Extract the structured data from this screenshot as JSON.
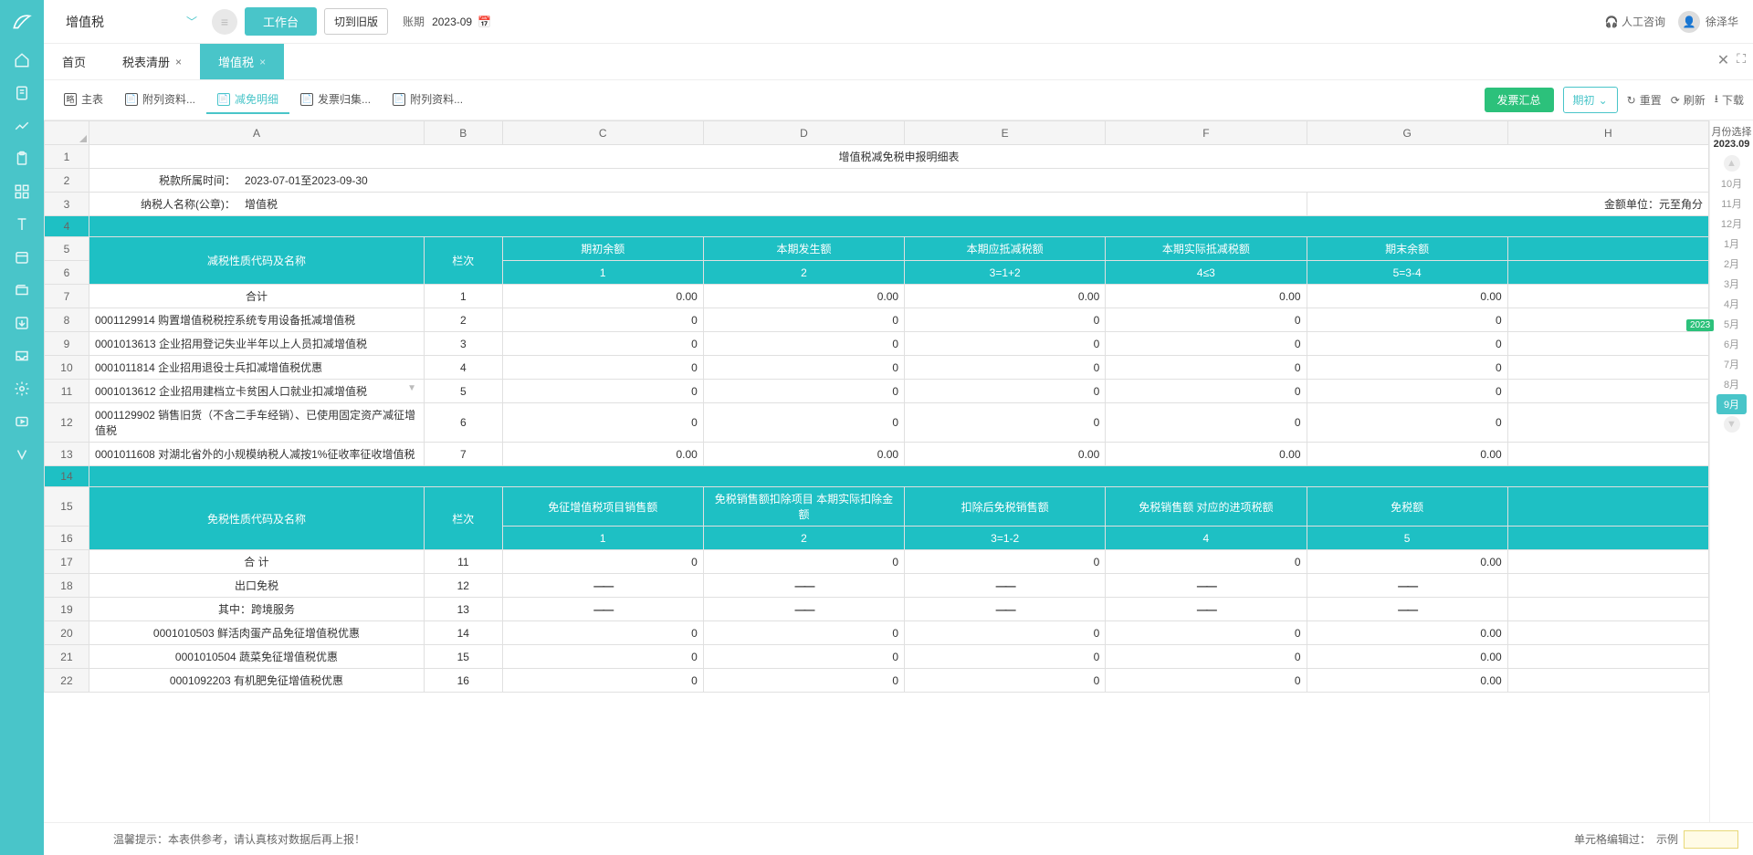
{
  "topbar": {
    "title": "增值税",
    "workbench": "工作台",
    "switch_old": "切到旧版",
    "period_label": "账期",
    "period_value": "2023-09",
    "consult": "人工咨询",
    "username": "徐泽华"
  },
  "tabs": [
    {
      "label": "首页",
      "closable": false,
      "active": false
    },
    {
      "label": "税表清册",
      "closable": true,
      "active": false
    },
    {
      "label": "增值税",
      "closable": true,
      "active": true
    }
  ],
  "sub_tabs": [
    {
      "label": "主表",
      "icon": "略",
      "active": false
    },
    {
      "label": "附列资料...",
      "icon": "📄",
      "active": false
    },
    {
      "label": "减免明细",
      "icon": "📄",
      "active": true
    },
    {
      "label": "发票归集...",
      "icon": "📄",
      "active": false
    },
    {
      "label": "附列资料...",
      "icon": "📄",
      "active": false
    }
  ],
  "actions": {
    "invoice_summary": "发票汇总",
    "initial": "期初",
    "reset": "重置",
    "refresh": "刷新",
    "download": "下载"
  },
  "cols": [
    "A",
    "B",
    "C",
    "D",
    "E",
    "F",
    "G",
    "H"
  ],
  "sheet": {
    "title": "增值税减免税申报明细表",
    "period_row_label": "税款所属时间：",
    "period_row_value": "2023-07-01至2023-09-30",
    "taxpayer_label": "纳税人名称(公章)：",
    "taxpayer_value": "增值税",
    "unit_label": "金额单位：元至角分",
    "section1": {
      "head_a": "减税性质代码及名称",
      "head_b": "栏次",
      "group_headers": [
        "期初余额",
        "本期发生额",
        "本期应抵减税额",
        "本期实际抵减税额",
        "期末余额"
      ],
      "group_formulas": [
        "1",
        "2",
        "3=1+2",
        "4≤3",
        "5=3-4"
      ],
      "rows": [
        {
          "n": 7,
          "a": "合计",
          "b": "1",
          "c": "0.00",
          "d": "0.00",
          "e": "0.00",
          "f": "0.00",
          "g": "0.00"
        },
        {
          "n": 8,
          "a": "0001129914 购置增值税税控系统专用设备抵减增值税",
          "b": "2",
          "c": "0",
          "d": "0",
          "e": "0",
          "f": "0",
          "g": "0"
        },
        {
          "n": 9,
          "a": "0001013613 企业招用登记失业半年以上人员扣减增值税",
          "b": "3",
          "c": "0",
          "d": "0",
          "e": "0",
          "f": "0",
          "g": "0"
        },
        {
          "n": 10,
          "a": "0001011814 企业招用退役士兵扣减增值税优惠",
          "b": "4",
          "c": "0",
          "d": "0",
          "e": "0",
          "f": "0",
          "g": "0"
        },
        {
          "n": 11,
          "a": "0001013612 企业招用建档立卡贫困人口就业扣减增值税",
          "b": "5",
          "c": "0",
          "d": "0",
          "e": "0",
          "f": "0",
          "g": "0",
          "dd": true
        },
        {
          "n": 12,
          "a": "0001129902 销售旧货（不含二手车经销）、已使用固定资产减征增值税",
          "b": "6",
          "c": "0",
          "d": "0",
          "e": "0",
          "f": "0",
          "g": "0"
        },
        {
          "n": 13,
          "a": "0001011608 对湖北省外的小规模纳税人减按1%征收率征收增值税",
          "b": "7",
          "c": "0.00",
          "d": "0.00",
          "e": "0.00",
          "f": "0.00",
          "g": "0.00"
        }
      ]
    },
    "section2": {
      "head_a": "免税性质代码及名称",
      "head_b": "栏次",
      "group_headers": [
        "免征增值税项目销售额",
        "免税销售额扣除项目 本期实际扣除金额",
        "扣除后免税销售额",
        "免税销售额 对应的进项税额",
        "免税额"
      ],
      "group_formulas": [
        "1",
        "2",
        "3=1-2",
        "4",
        "5"
      ],
      "rows": [
        {
          "n": 17,
          "a": "合 计",
          "b": "11",
          "c": "0",
          "d": "0",
          "e": "0",
          "f": "0",
          "g": "0.00",
          "ctr": true
        },
        {
          "n": 18,
          "a": "出口免税",
          "b": "12",
          "dash": true,
          "ctr": true
        },
        {
          "n": 19,
          "a": "其中：跨境服务",
          "b": "13",
          "dash": true,
          "ctr": true
        },
        {
          "n": 20,
          "a": "0001010503 鲜活肉蛋产品免征增值税优惠",
          "b": "14",
          "c": "0",
          "d": "0",
          "e": "0",
          "f": "0",
          "g": "0.00",
          "ctr": true
        },
        {
          "n": 21,
          "a": "0001010504 蔬菜免征增值税优惠",
          "b": "15",
          "c": "0",
          "d": "0",
          "e": "0",
          "f": "0",
          "g": "0.00",
          "ctr": true
        },
        {
          "n": 22,
          "a": "0001092203 有机肥免征增值税优惠",
          "b": "16",
          "c": "0",
          "d": "0",
          "e": "0",
          "f": "0",
          "g": "0.00",
          "ctr": true
        }
      ]
    }
  },
  "months": {
    "label": "月份选择",
    "year": "2023.09",
    "badge": "2023",
    "list": [
      "10月",
      "11月",
      "12月",
      "1月",
      "2月",
      "3月",
      "4月",
      "5月",
      "6月",
      "7月",
      "8月",
      "9月"
    ],
    "active": "9月"
  },
  "footer": {
    "hint": "温馨提示：本表供参考，请认真核对数据后再上报！",
    "edit_label": "单元格编辑过：",
    "example": "示例"
  }
}
